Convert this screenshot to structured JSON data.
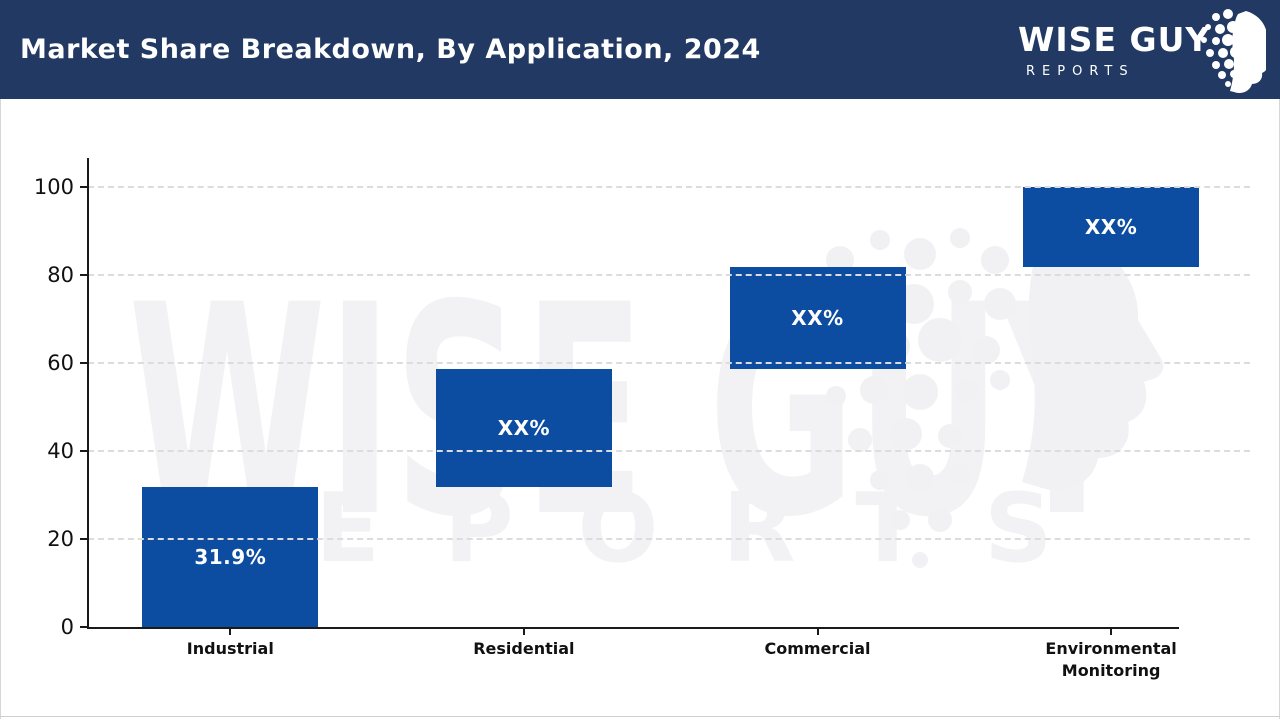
{
  "header": {
    "title": "Market Share Breakdown, By Application, 2024",
    "bg_color": "#213963",
    "logo": {
      "line1": "WISE GUY",
      "line2": "R E P O R T S"
    }
  },
  "watermark": {
    "line1": "WISE GUY",
    "line2": "R E P O R T S"
  },
  "chart_data": {
    "type": "bar",
    "subtype": "waterfall",
    "title": "Market Share Breakdown, By Application, 2024",
    "xlabel": "",
    "ylabel": "",
    "categories": [
      "Industrial",
      "Residential",
      "Commercial",
      "Environmental Monitoring"
    ],
    "series": [
      {
        "name": "Market share (%)",
        "segments": [
          {
            "category": "Industrial",
            "base": 0,
            "top": 31.9,
            "label": "31.9%"
          },
          {
            "category": "Residential",
            "base": 31.9,
            "top": 58.6,
            "label": "XX%"
          },
          {
            "category": "Commercial",
            "base": 58.6,
            "top": 81.8,
            "label": "XX%"
          },
          {
            "category": "Environmental Monitoring",
            "base": 81.8,
            "top": 100,
            "label": "XX%"
          }
        ]
      }
    ],
    "y_ticks": [
      0,
      20,
      40,
      60,
      80,
      100
    ],
    "ylim": [
      0,
      105
    ],
    "grid": "horizontal dashed, drawn over bars",
    "legend": "none",
    "bar_color": "#0c4da2",
    "bar_label_color": "#ffffff"
  }
}
